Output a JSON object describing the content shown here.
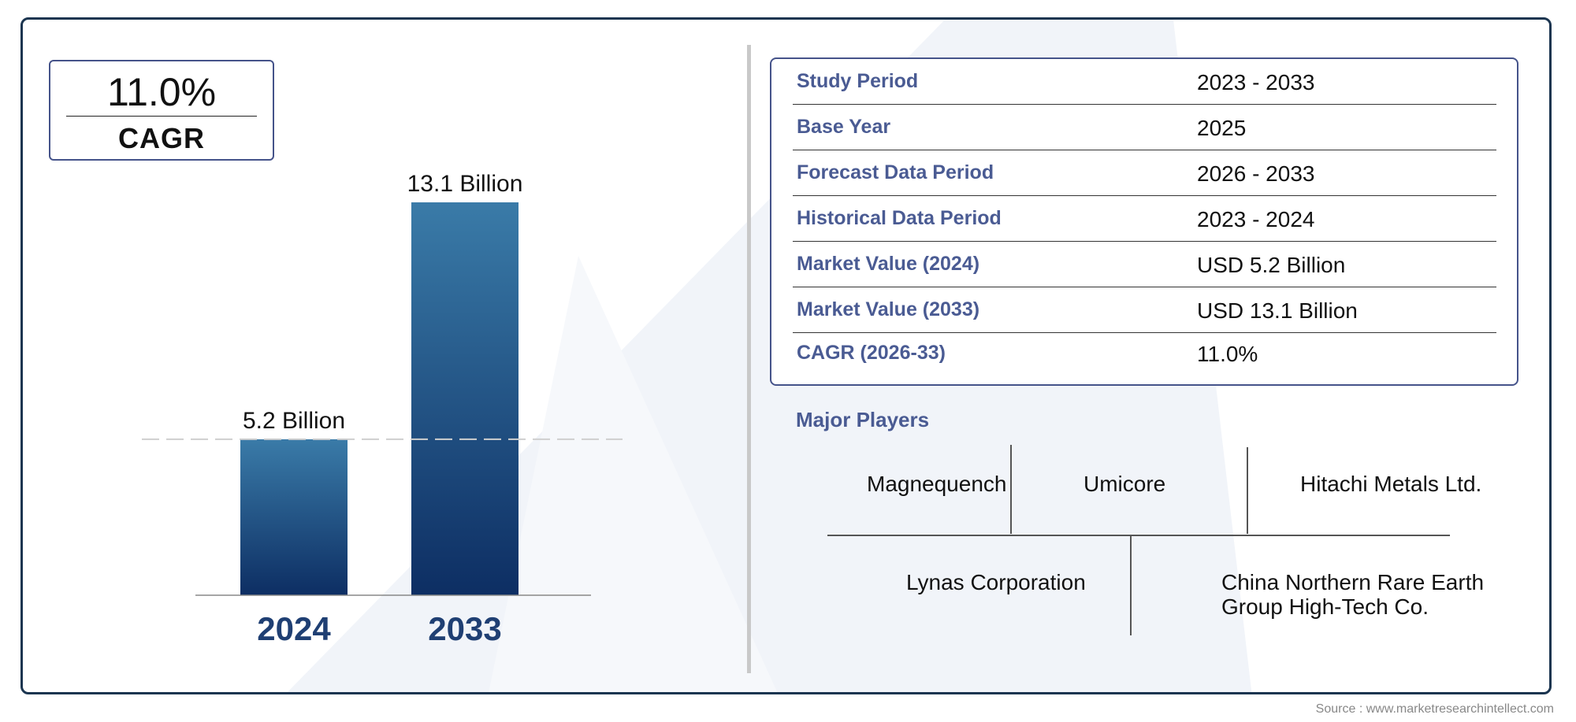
{
  "cagr_box": {
    "value": "11.0%",
    "label": "CAGR"
  },
  "chart_data": {
    "type": "bar",
    "categories": [
      "2024",
      "2033"
    ],
    "values": [
      5.2,
      13.1
    ],
    "value_labels": [
      "5.2 Billion",
      "13.1 Billion"
    ],
    "title": "",
    "xlabel": "",
    "ylabel": "",
    "ylim": [
      0,
      13.1
    ],
    "grid": false,
    "reference_line_value": 5.2,
    "colors": {
      "bar_top": "#3a7ba8",
      "bar_bottom": "#0d2e63",
      "category_label": "#1f3f73"
    }
  },
  "info_table": {
    "rows": [
      {
        "label": "Study Period",
        "value": "2023 - 2033"
      },
      {
        "label": "Base Year",
        "value": "2025"
      },
      {
        "label": "Forecast Data Period",
        "value": "2026 - 2033"
      },
      {
        "label": "Historical Data Period",
        "value": "2023 - 2024"
      },
      {
        "label": "Market Value (2024)",
        "value": "USD 5.2 Billion"
      },
      {
        "label": "Market Value (2033)",
        "value": "USD 13.1 Billion"
      },
      {
        "label": "CAGR (2026-33)",
        "value": "11.0%"
      }
    ]
  },
  "major_players": {
    "title": "Major Players",
    "players": [
      "Magnequench",
      "Umicore",
      "Hitachi Metals Ltd.",
      "Lynas Corporation",
      "China Northern Rare Earth\nGroup High-Tech Co."
    ]
  },
  "source": "Source : www.marketresearchintellect.com",
  "colors": {
    "frame": "#1b3550",
    "accent": "#4a5b93",
    "watermark": "#eef2f8"
  }
}
